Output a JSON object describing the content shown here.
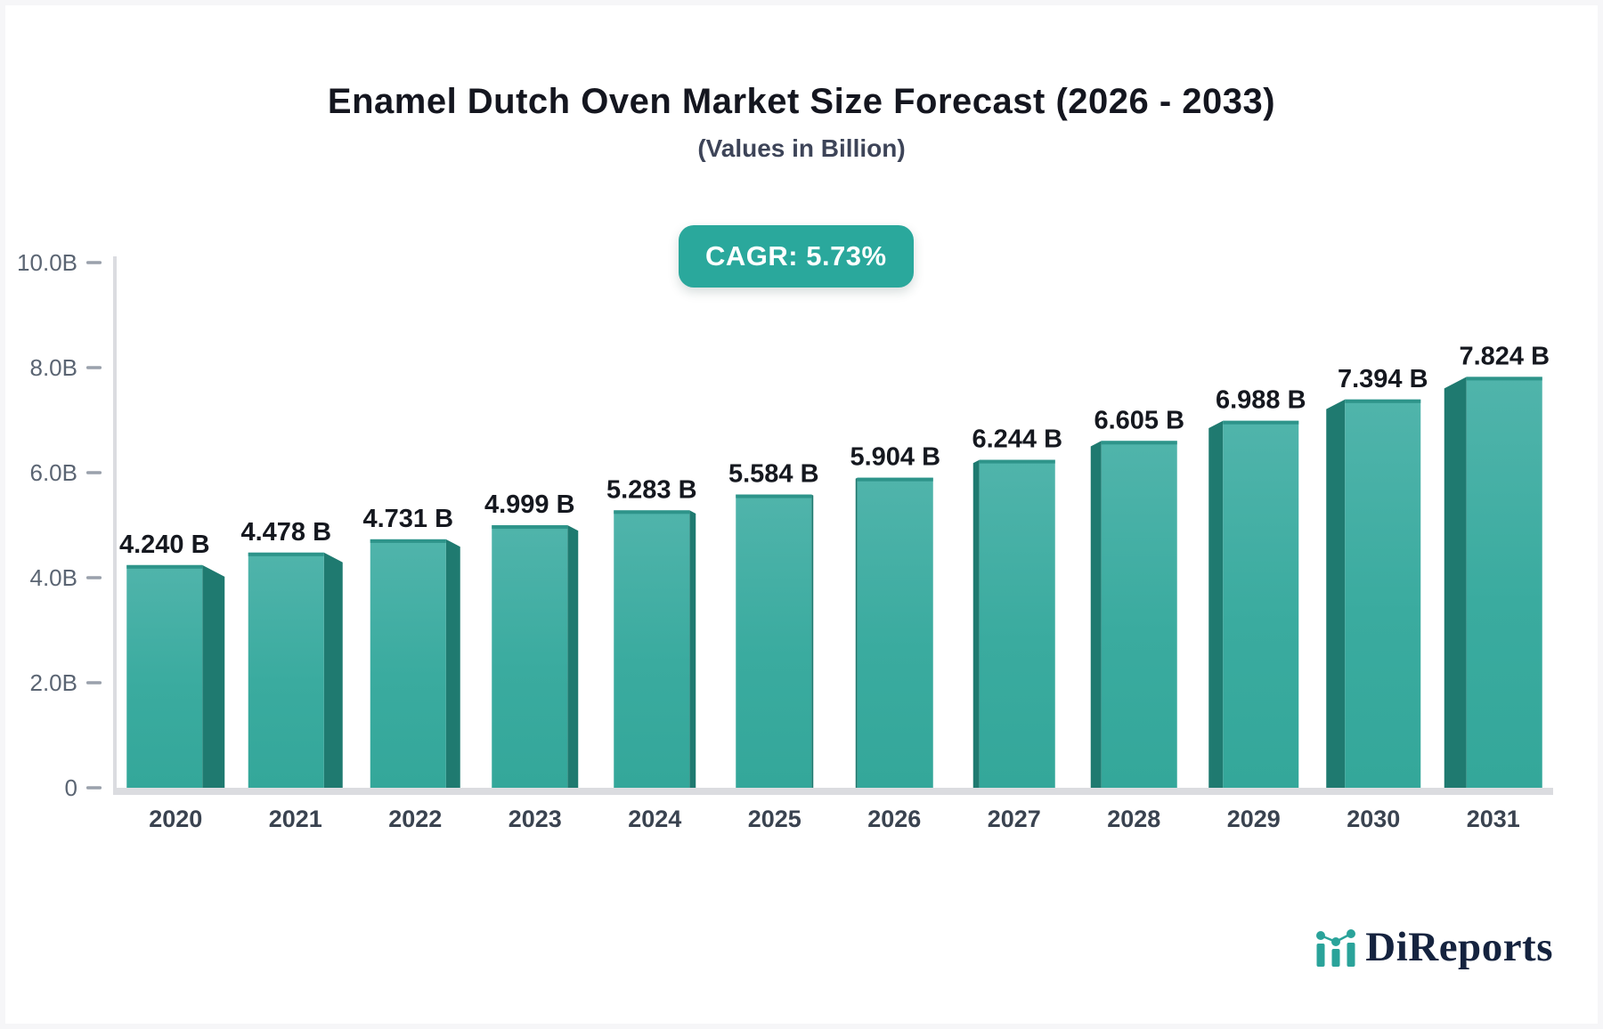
{
  "chart_data": {
    "type": "bar",
    "title": "Enamel Dutch Oven Market Size Forecast (2026 - 2033)",
    "subtitle": "(Values in Billion)",
    "cagr_label": "CAGR: 5.73%",
    "categories": [
      "2020",
      "2021",
      "2022",
      "2023",
      "2024",
      "2025",
      "2026",
      "2027",
      "2028",
      "2029",
      "2030",
      "2031"
    ],
    "values": [
      4.24,
      4.478,
      4.731,
      4.999,
      5.283,
      5.584,
      5.904,
      6.244,
      6.605,
      6.988,
      7.394,
      7.824
    ],
    "value_labels": [
      "4.240 B",
      "4.478 B",
      "4.731 B",
      "4.999 B",
      "5.283 B",
      "5.584 B",
      "5.904 B",
      "6.244 B",
      "6.605 B",
      "6.988 B",
      "7.394 B",
      "7.824 B"
    ],
    "unit": "Billion",
    "xlabel": "",
    "ylabel": "",
    "ylim": [
      0,
      10
    ],
    "yticks": [
      {
        "value": 10,
        "label": "10.0B"
      },
      {
        "value": 8,
        "label": "8.0B"
      },
      {
        "value": 6,
        "label": "6.0B"
      },
      {
        "value": 4,
        "label": "4.0B"
      },
      {
        "value": 2,
        "label": "2.0B"
      },
      {
        "value": 0,
        "label": "0"
      }
    ],
    "grid": false,
    "legend": false,
    "bar_style": "3d",
    "colors": {
      "bar_front_top": "#50b4ab",
      "bar_front_mid": "#3aab9f",
      "bar_front_bottom": "#34a79a",
      "bar_side": "#1f7a70",
      "bar_top_edge": "#2e948a",
      "axis_line": "#dbdce0",
      "tick_mark": "#9aa1ac",
      "y_label": "#5b6573",
      "x_label": "#3a4350",
      "value_label": "#15181f",
      "badge_bg": "#2aa89c",
      "badge_text": "#ffffff"
    }
  },
  "branding": {
    "logo_text": "DiReports",
    "logo_icon": "bar-chart-trend-icon",
    "logo_text_color": "#15233f",
    "logo_icon_color": "#2aa39a"
  }
}
